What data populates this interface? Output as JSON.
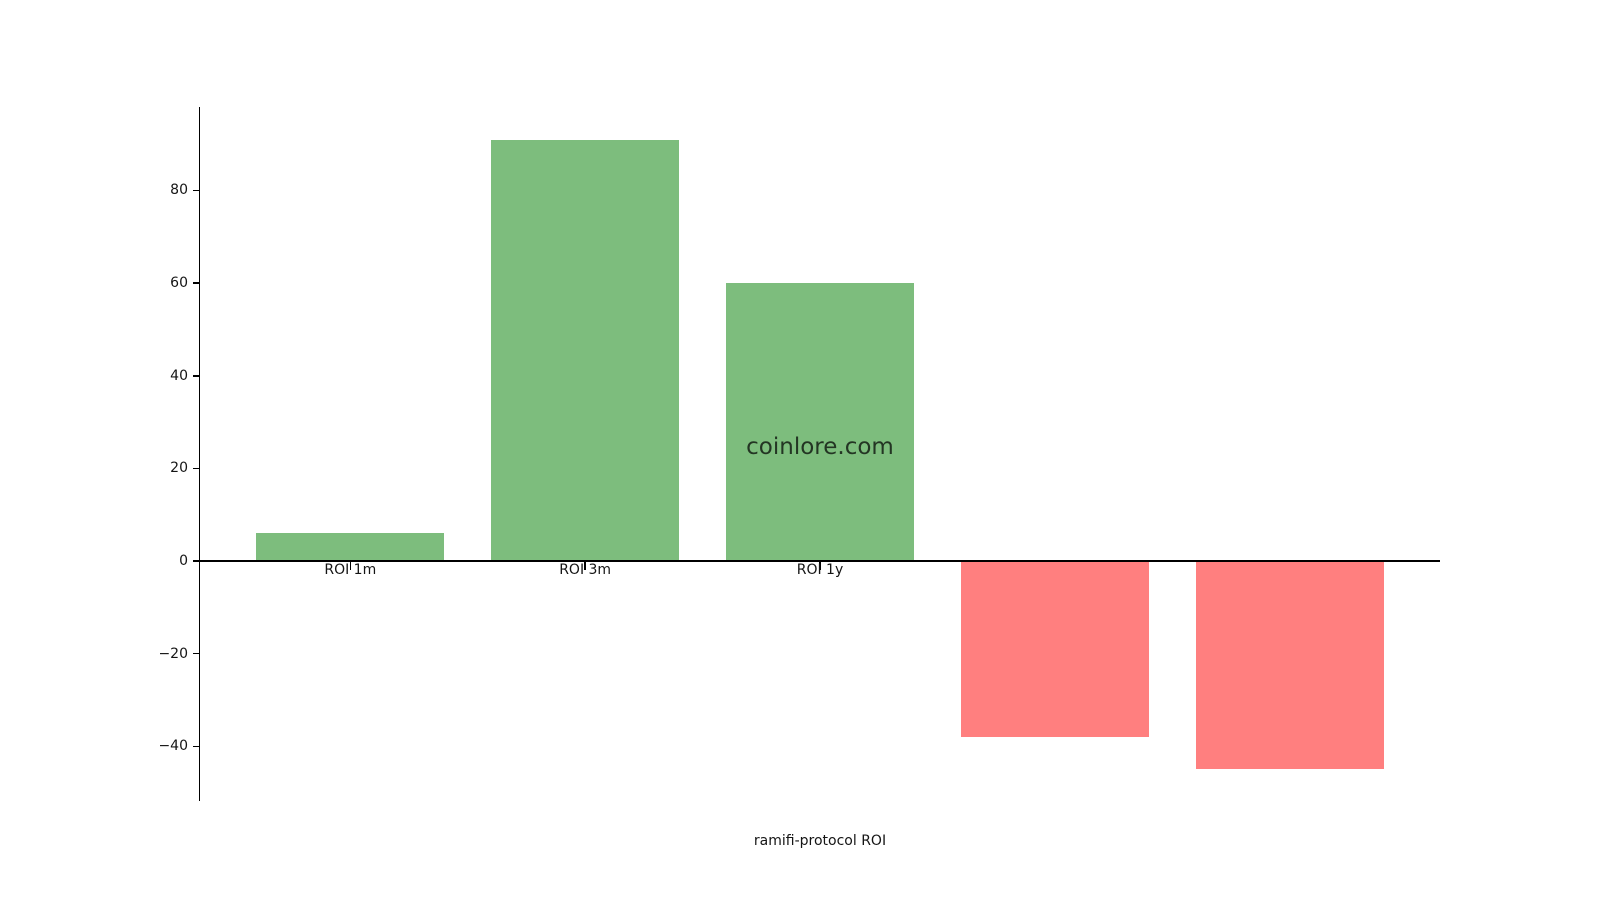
{
  "watermark": {
    "text": "coinlore.com"
  },
  "chart_data": {
    "type": "bar",
    "title": "",
    "categories": [
      "ROI 1m",
      "ROI 3m",
      "ROI 1y",
      "",
      ""
    ],
    "values": [
      6,
      91,
      60,
      -38,
      -45
    ],
    "xlabel": "ramifi-protocol ROI",
    "ylabel": "",
    "xlim": [
      -0.64,
      4.64
    ],
    "ylim": [
      -51.8,
      97.8
    ],
    "yticks": [
      80,
      60,
      40,
      20,
      0,
      -20,
      -40
    ],
    "bar_width": 0.8,
    "grid": false,
    "legend": false,
    "colors": {
      "positive": "#7dbd7d",
      "negative": "#ff7f7f",
      "axis": "#000000",
      "tick_text": "#151515",
      "watermark_text": "rgba(0,0,0,0.72)"
    }
  }
}
